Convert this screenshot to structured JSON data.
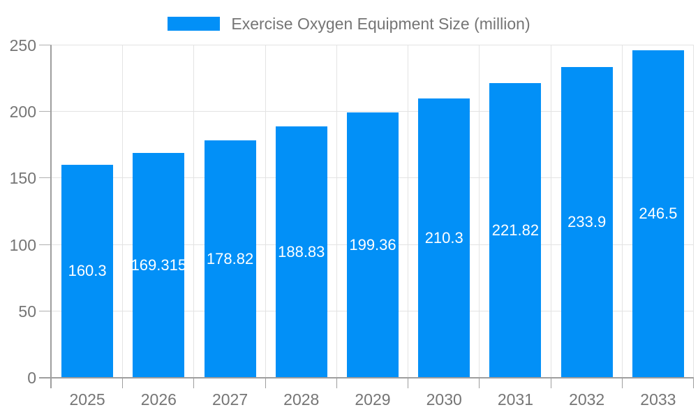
{
  "legend": {
    "label": "Exercise Oxygen Equipment Size (million)"
  },
  "colors": {
    "bar": "#0290f7",
    "axis": "#9e9e9e",
    "grid": "#e3e3e3",
    "y_tick": "#b0b0b0",
    "tick_text": "#757575",
    "bar_label_text": "#ffffff"
  },
  "chart_data": {
    "type": "bar",
    "title": "Exercise Oxygen Equipment Size (million)",
    "categories": [
      "2025",
      "2026",
      "2027",
      "2028",
      "2029",
      "2030",
      "2031",
      "2032",
      "2033"
    ],
    "values": [
      160.3,
      169.315,
      178.82,
      188.83,
      199.36,
      210.3,
      221.82,
      233.9,
      246.5
    ],
    "value_labels": [
      "160.3",
      "169.315",
      "178.82",
      "188.83",
      "199.36",
      "210.3",
      "221.82",
      "233.9",
      "246.5"
    ],
    "xlabel": "",
    "ylabel": "",
    "ylim": [
      0,
      250
    ],
    "yticks": [
      0,
      50,
      100,
      150,
      200,
      250
    ],
    "grid": true,
    "legend_position": "top",
    "value_label_position": "inside-middle"
  }
}
